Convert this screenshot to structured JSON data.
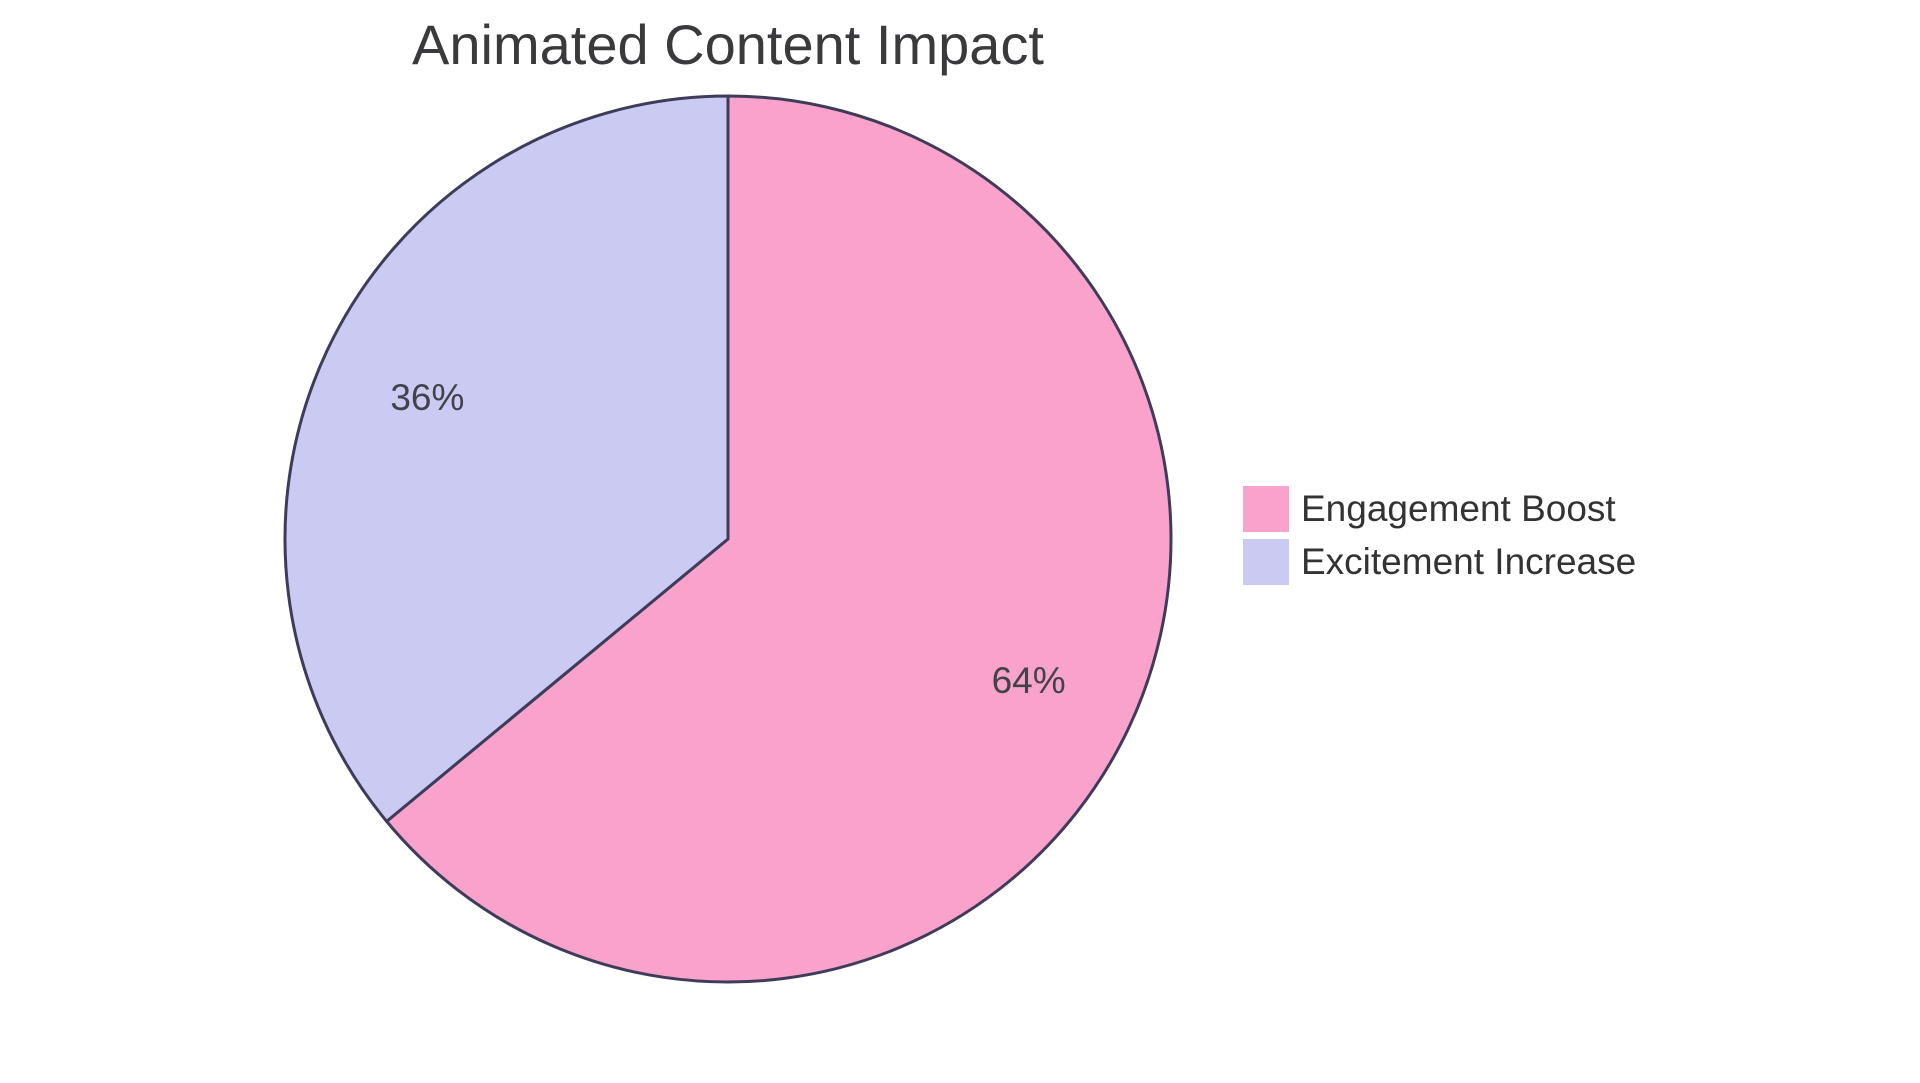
{
  "title": {
    "text": "Animated Content Impact",
    "color": "#3a3a3c"
  },
  "chart_data": {
    "type": "pie",
    "title": "Animated Content Impact",
    "slices": [
      {
        "label": "Engagement Boost",
        "value": 64,
        "display": "64%",
        "color": "#F9A2CB"
      },
      {
        "label": "Excitement Increase",
        "value": 36,
        "display": "36%",
        "color": "#CACAF3"
      }
    ],
    "start_angle_deg": 0,
    "direction": "clockwise",
    "slice_border_color": "#3E3C5A",
    "slice_border_width": 3,
    "percent_label_color": "#42424A",
    "legend_position": "right",
    "background": "#FFFFFF"
  }
}
